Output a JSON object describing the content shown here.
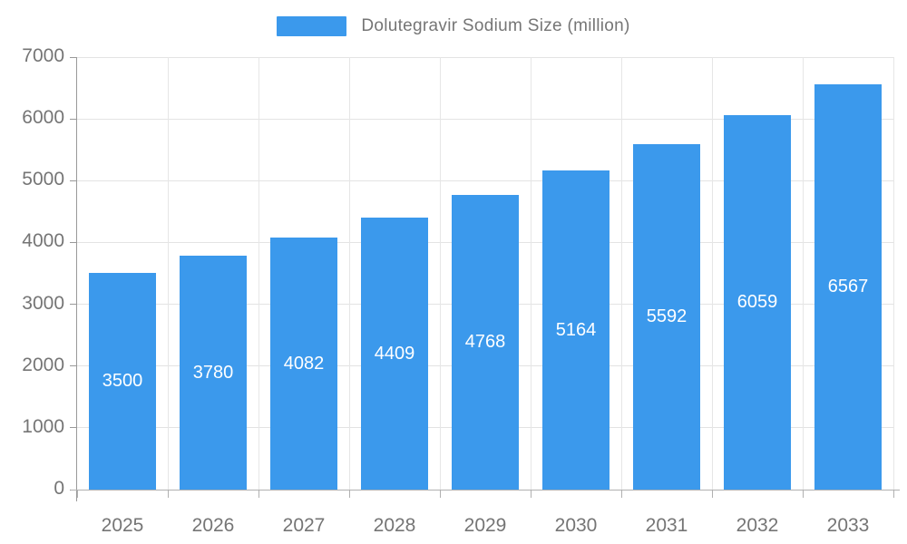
{
  "legend": {
    "label": "Dolutegravir Sodium Size (million)"
  },
  "chart_data": {
    "type": "bar",
    "title": "Dolutegravir Sodium Size (million)",
    "categories": [
      "2025",
      "2026",
      "2027",
      "2028",
      "2029",
      "2030",
      "2031",
      "2032",
      "2033"
    ],
    "values": [
      3500,
      3780,
      4082,
      4409,
      4768,
      5164,
      5592,
      6059,
      6567
    ],
    "series_name": "Dolutegravir Sodium Size (million)",
    "xlabel": "",
    "ylabel": "",
    "ylim": [
      0,
      7000
    ],
    "yticks": [
      0,
      1000,
      2000,
      3000,
      4000,
      5000,
      6000,
      7000
    ],
    "grid": true,
    "legend_position": "top",
    "value_labels": "centered-inside-bars",
    "colors": {
      "bar": "#3b99ec",
      "axis_text": "#757575",
      "legend_text": "#757575",
      "grid_line": "#e3e3e3",
      "axis_line": "#999999",
      "value_label": "#ffffff",
      "background": "#ffffff"
    }
  }
}
